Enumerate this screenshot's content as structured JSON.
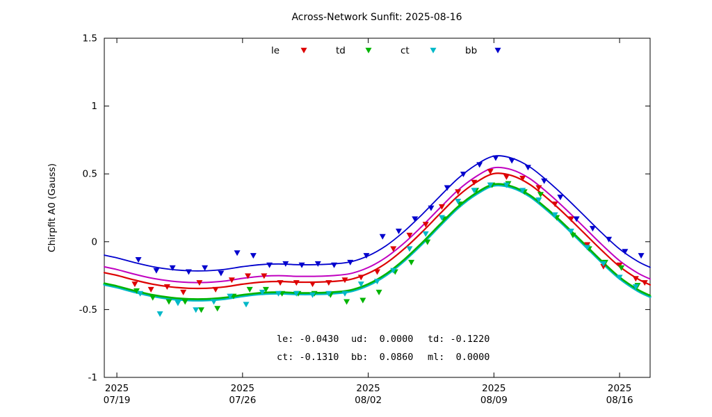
{
  "page": {
    "title": "Across-Network Sunfit: 2025-08-16"
  },
  "chart_data": {
    "type": "line",
    "title": "Across-Network Sunfit: 2025-08-16",
    "xlabel": "",
    "ylabel": "Chirpfit A0 (Gauss)",
    "ylim": [
      -1,
      1.5
    ],
    "yticks": [
      -1,
      -0.5,
      0,
      0.5,
      1,
      1.5
    ],
    "ytick_labels": [
      "-1",
      "-0.5",
      "0",
      "0.5",
      "1",
      "1.5"
    ],
    "x_domain_days": [
      -0.7,
      29.7
    ],
    "x_epoch": "2025-07-19",
    "xticks": [
      {
        "t": 0,
        "line1": "2025",
        "line2": "07/19"
      },
      {
        "t": 7,
        "line1": "2025",
        "line2": "07/26"
      },
      {
        "t": 14,
        "line1": "2025",
        "line2": "08/02"
      },
      {
        "t": 21,
        "line1": "2025",
        "line2": "08/09"
      },
      {
        "t": 28,
        "line1": "2025",
        "line2": "08/16"
      }
    ],
    "grid": false,
    "legend": {
      "position": "top-center",
      "entries": [
        {
          "label": "le",
          "color": "#dd0000"
        },
        {
          "label": "td",
          "color": "#00b400"
        },
        {
          "label": "ct",
          "color": "#00b8c8"
        },
        {
          "label": "bb",
          "color": "#0000cd"
        }
      ]
    },
    "base_curve": {
      "t": [
        -0.7,
        0,
        1,
        2,
        3,
        4,
        5,
        6,
        7,
        8,
        9,
        10,
        11,
        12,
        13,
        14,
        15,
        16,
        17,
        18,
        19,
        20,
        21,
        22,
        23,
        24,
        25,
        26,
        27,
        28,
        29,
        29.7
      ],
      "v": [
        -0.185,
        -0.205,
        -0.24,
        -0.27,
        -0.29,
        -0.3,
        -0.3,
        -0.29,
        -0.27,
        -0.255,
        -0.25,
        -0.255,
        -0.255,
        -0.25,
        -0.235,
        -0.19,
        -0.115,
        -0.01,
        0.115,
        0.25,
        0.38,
        0.48,
        0.545,
        0.53,
        0.465,
        0.36,
        0.24,
        0.11,
        -0.02,
        -0.14,
        -0.23,
        -0.275
      ]
    },
    "curves": [
      {
        "name": "bb",
        "color": "#0000cd",
        "offset": 0.086,
        "width": 1.8
      },
      {
        "name": "ud-ml",
        "color": "#c000c0",
        "offset": 0.0,
        "width": 2.0
      },
      {
        "name": "le",
        "color": "#dd0000",
        "offset": -0.043,
        "width": 2.2
      },
      {
        "name": "ct",
        "color": "#00b8c8",
        "offset": -0.131,
        "width": 3.4
      },
      {
        "name": "td",
        "color": "#00b400",
        "offset": -0.122,
        "width": 2.6
      }
    ],
    "scatter": [
      {
        "name": "le",
        "color": "#dd0000",
        "points": [
          [
            1.0,
            -0.31
          ],
          [
            1.9,
            -0.35
          ],
          [
            2.8,
            -0.33
          ],
          [
            3.7,
            -0.37
          ],
          [
            4.6,
            -0.3
          ],
          [
            5.5,
            -0.35
          ],
          [
            6.4,
            -0.28
          ],
          [
            7.3,
            -0.25
          ],
          [
            8.2,
            -0.25
          ],
          [
            9.1,
            -0.3
          ],
          [
            10.0,
            -0.3
          ],
          [
            10.9,
            -0.31
          ],
          [
            11.8,
            -0.3
          ],
          [
            12.7,
            -0.28
          ],
          [
            13.6,
            -0.26
          ],
          [
            14.5,
            -0.22
          ],
          [
            15.4,
            -0.05
          ],
          [
            16.3,
            0.05
          ],
          [
            17.2,
            0.13
          ],
          [
            18.1,
            0.26
          ],
          [
            19.0,
            0.37
          ],
          [
            19.9,
            0.44
          ],
          [
            20.8,
            0.52
          ],
          [
            21.7,
            0.48
          ],
          [
            22.6,
            0.47
          ],
          [
            23.5,
            0.4
          ],
          [
            24.4,
            0.28
          ],
          [
            25.3,
            0.17
          ],
          [
            26.2,
            -0.02
          ],
          [
            27.1,
            -0.18
          ],
          [
            28.0,
            -0.17
          ],
          [
            28.9,
            -0.27
          ],
          [
            29.4,
            -0.3
          ]
        ]
      },
      {
        "name": "td",
        "color": "#00b400",
        "points": [
          [
            1.1,
            -0.36
          ],
          [
            2.0,
            -0.41
          ],
          [
            2.9,
            -0.44
          ],
          [
            3.8,
            -0.44
          ],
          [
            4.7,
            -0.5
          ],
          [
            5.6,
            -0.49
          ],
          [
            6.5,
            -0.4
          ],
          [
            7.4,
            -0.35
          ],
          [
            8.3,
            -0.35
          ],
          [
            9.2,
            -0.38
          ],
          [
            10.1,
            -0.38
          ],
          [
            11.0,
            -0.38
          ],
          [
            11.9,
            -0.39
          ],
          [
            12.8,
            -0.44
          ],
          [
            13.7,
            -0.43
          ],
          [
            14.6,
            -0.37
          ],
          [
            15.5,
            -0.22
          ],
          [
            16.4,
            -0.15
          ],
          [
            17.3,
            0.0
          ],
          [
            18.2,
            0.17
          ],
          [
            19.1,
            0.28
          ],
          [
            20.0,
            0.38
          ],
          [
            20.9,
            0.42
          ],
          [
            21.8,
            0.43
          ],
          [
            22.7,
            0.37
          ],
          [
            23.6,
            0.35
          ],
          [
            24.5,
            0.18
          ],
          [
            25.4,
            0.05
          ],
          [
            26.3,
            -0.05
          ],
          [
            27.2,
            -0.15
          ],
          [
            28.1,
            -0.19
          ],
          [
            29.0,
            -0.32
          ]
        ]
      },
      {
        "name": "ct",
        "color": "#00b8c8",
        "points": [
          [
            1.3,
            -0.38
          ],
          [
            2.4,
            -0.53
          ],
          [
            3.4,
            -0.45
          ],
          [
            4.4,
            -0.5
          ],
          [
            5.4,
            -0.44
          ],
          [
            6.3,
            -0.4
          ],
          [
            7.2,
            -0.46
          ],
          [
            8.1,
            -0.37
          ],
          [
            9.0,
            -0.38
          ],
          [
            10.0,
            -0.38
          ],
          [
            10.9,
            -0.39
          ],
          [
            11.8,
            -0.38
          ],
          [
            12.7,
            -0.38
          ],
          [
            13.6,
            -0.31
          ],
          [
            14.5,
            -0.29
          ],
          [
            15.4,
            -0.21
          ],
          [
            16.3,
            -0.05
          ],
          [
            17.2,
            0.06
          ],
          [
            18.1,
            0.18
          ],
          [
            19.0,
            0.3
          ],
          [
            19.9,
            0.38
          ],
          [
            20.8,
            0.42
          ],
          [
            21.7,
            0.42
          ],
          [
            22.6,
            0.38
          ],
          [
            23.5,
            0.31
          ],
          [
            24.4,
            0.2
          ],
          [
            25.3,
            0.08
          ],
          [
            26.2,
            -0.04
          ],
          [
            27.1,
            -0.16
          ],
          [
            28.0,
            -0.26
          ],
          [
            28.9,
            -0.33
          ]
        ]
      },
      {
        "name": "bb",
        "color": "#0000cd",
        "points": [
          [
            1.2,
            -0.13
          ],
          [
            2.2,
            -0.21
          ],
          [
            3.1,
            -0.19
          ],
          [
            4.0,
            -0.22
          ],
          [
            4.9,
            -0.19
          ],
          [
            5.8,
            -0.23
          ],
          [
            6.7,
            -0.08
          ],
          [
            7.6,
            -0.1
          ],
          [
            8.5,
            -0.17
          ],
          [
            9.4,
            -0.16
          ],
          [
            10.3,
            -0.17
          ],
          [
            11.2,
            -0.16
          ],
          [
            12.1,
            -0.17
          ],
          [
            13.0,
            -0.15
          ],
          [
            13.9,
            -0.1
          ],
          [
            14.8,
            0.04
          ],
          [
            15.7,
            0.08
          ],
          [
            16.6,
            0.17
          ],
          [
            17.5,
            0.25
          ],
          [
            18.4,
            0.4
          ],
          [
            19.3,
            0.5
          ],
          [
            20.2,
            0.57
          ],
          [
            21.1,
            0.62
          ],
          [
            22.0,
            0.6
          ],
          [
            22.9,
            0.55
          ],
          [
            23.8,
            0.45
          ],
          [
            24.7,
            0.33
          ],
          [
            25.6,
            0.17
          ],
          [
            26.5,
            0.1
          ],
          [
            27.4,
            0.02
          ],
          [
            28.3,
            -0.07
          ],
          [
            29.2,
            -0.1
          ]
        ]
      }
    ],
    "fit_offsets": {
      "le": -0.043,
      "ud": 0.0,
      "td": -0.122,
      "ct": -0.131,
      "bb": 0.086,
      "ml": 0.0
    },
    "annotations": [
      [
        "le: -0.0430",
        "ud:  0.0000",
        "td: -0.1220"
      ],
      [
        "ct: -0.1310",
        "bb:  0.0860",
        "ml:  0.0000"
      ]
    ]
  }
}
